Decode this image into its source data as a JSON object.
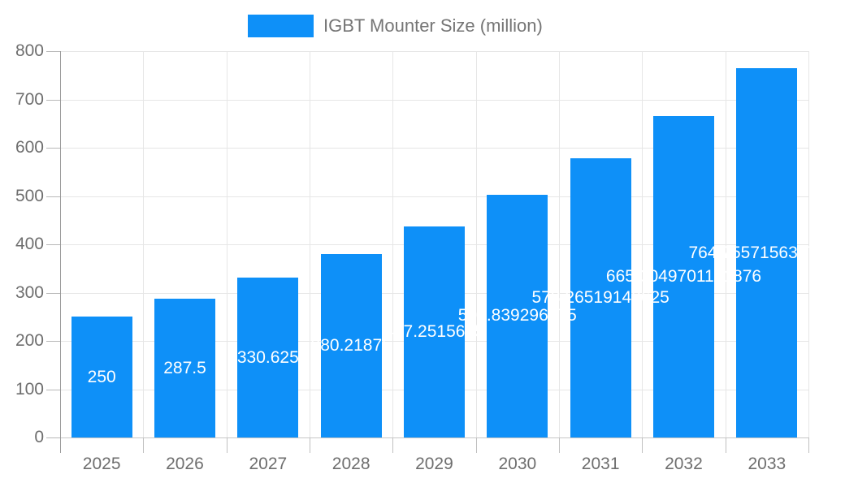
{
  "legend": {
    "label": "IGBT Mounter Size (million)",
    "swatch_color": "#0e90f8"
  },
  "chart_data": {
    "type": "bar",
    "title": "",
    "series_name": "IGBT Mounter Size (million)",
    "categories": [
      "2025",
      "2026",
      "2027",
      "2028",
      "2029",
      "2030",
      "2031",
      "2032",
      "2033"
    ],
    "values": [
      250,
      287.5,
      330.625,
      380.21875,
      437.2515625,
      502.839296875,
      578.26519140625,
      665.0049701171876,
      764.7557156347656
    ],
    "xlabel": "",
    "ylabel": "",
    "ylim": [
      0,
      800
    ],
    "yticks": [
      0,
      100,
      200,
      300,
      400,
      500,
      600,
      700,
      800
    ],
    "grid": true,
    "legend_position": "top-center",
    "bar_color": "#0e90f8",
    "data_label_color": "#ffffff",
    "axis_label_color": "#6e6e6e",
    "gridline_color": "#e6e6e6"
  }
}
